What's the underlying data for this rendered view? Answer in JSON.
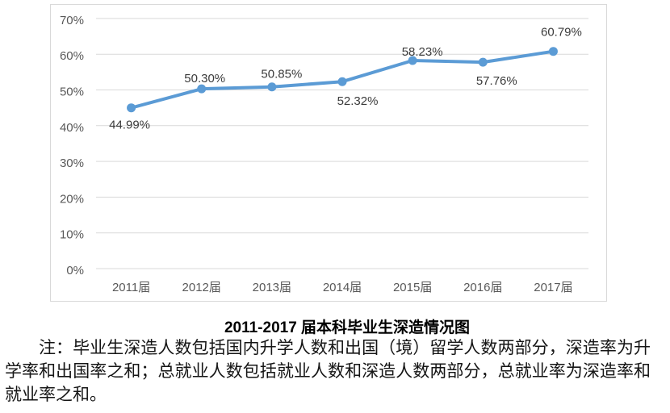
{
  "chart_data": {
    "type": "line",
    "title": "2011-2017 届本科毕业生深造情况图",
    "categories": [
      "2011届",
      "2012届",
      "2013届",
      "2014届",
      "2015届",
      "2016届",
      "2017届"
    ],
    "values": [
      44.99,
      50.3,
      50.85,
      52.32,
      58.23,
      57.76,
      60.79
    ],
    "data_labels": [
      "44.99%",
      "50.30%",
      "50.85%",
      "52.32%",
      "58.23%",
      "57.76%",
      "60.79%"
    ],
    "label_positions": [
      "below",
      "above",
      "above",
      "below",
      "above",
      "below",
      "above"
    ],
    "label_offsets": {
      "dx": [
        -2,
        4,
        12,
        19,
        12,
        17,
        10
      ],
      "dy": [
        26,
        -8,
        -11,
        29,
        -6,
        28,
        -19
      ]
    },
    "y_ticks": [
      "0%",
      "10%",
      "20%",
      "30%",
      "40%",
      "50%",
      "60%",
      "70%"
    ],
    "ylim": [
      0,
      70
    ],
    "xlabel": "",
    "ylabel": "",
    "grid": true,
    "legend": "none",
    "colors": {
      "line": "#5B9BD5",
      "marker": "#5B9BD5",
      "gridline": "#D9D9D9",
      "frame_border": "#D9D9D9",
      "axis_text": "#595959",
      "data_label_text": "#3B3B3B"
    }
  },
  "caption": {
    "title": "2011-2017 届本科毕业生深造情况图"
  },
  "note": {
    "text": "注：毕业生深造人数包括国内升学人数和出国（境）留学人数两部分，深造率为升学率和出国率之和；总就业人数包括就业人数和深造人数两部分，总就业率为深造率和就业率之和。"
  }
}
